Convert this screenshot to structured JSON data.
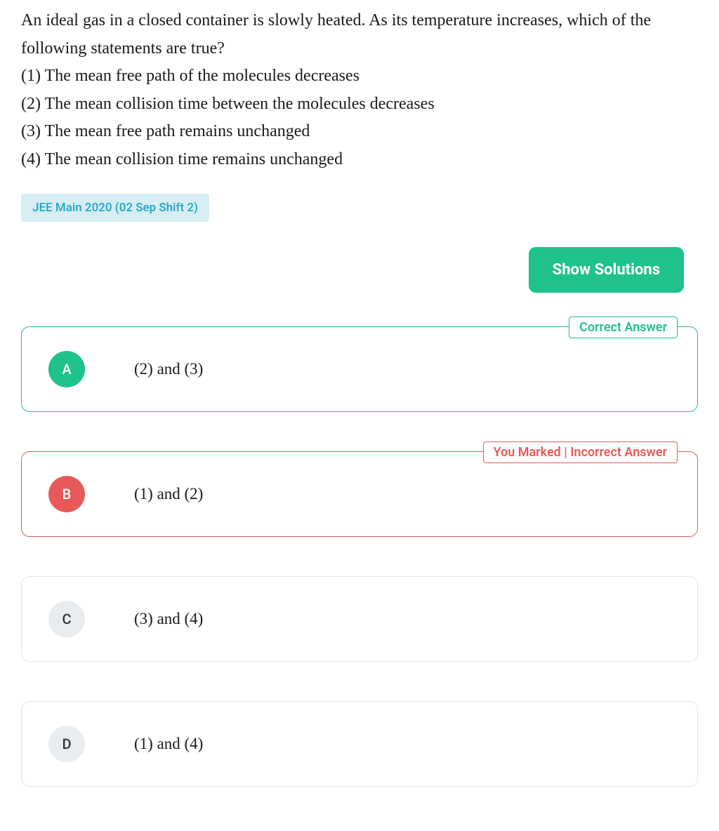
{
  "question": {
    "stem": "An ideal gas in a closed container is slowly heated. As its temperature increases, which of the following statements are true?",
    "statements": [
      "(1) The mean free path of the molecules decreases",
      "(2) The mean collision time between the molecules decreases",
      "(3) The mean free path remains unchanged",
      "(4) The mean collision time remains unchanged"
    ]
  },
  "source_tag": "JEE Main 2020 (02 Sep Shift 2)",
  "buttons": {
    "show_solutions": "Show Solutions"
  },
  "badges": {
    "correct": "Correct Answer",
    "incorrect": "You Marked | Incorrect Answer"
  },
  "options": [
    {
      "letter": "A",
      "text": "(2) and (3)",
      "state": "correct"
    },
    {
      "letter": "B",
      "text": "(1) and (2)",
      "state": "incorrect"
    },
    {
      "letter": "C",
      "text": "(3) and (4)",
      "state": "neutral"
    },
    {
      "letter": "D",
      "text": "(1) and (4)",
      "state": "neutral"
    }
  ],
  "colors": {
    "correct": "#1fc28b",
    "incorrect": "#e85a5a",
    "tag_bg": "#d7edf4",
    "tag_text": "#1ba8c7",
    "neutral_circle": "#e9ecef",
    "border_neutral": "#e3e6ea"
  }
}
